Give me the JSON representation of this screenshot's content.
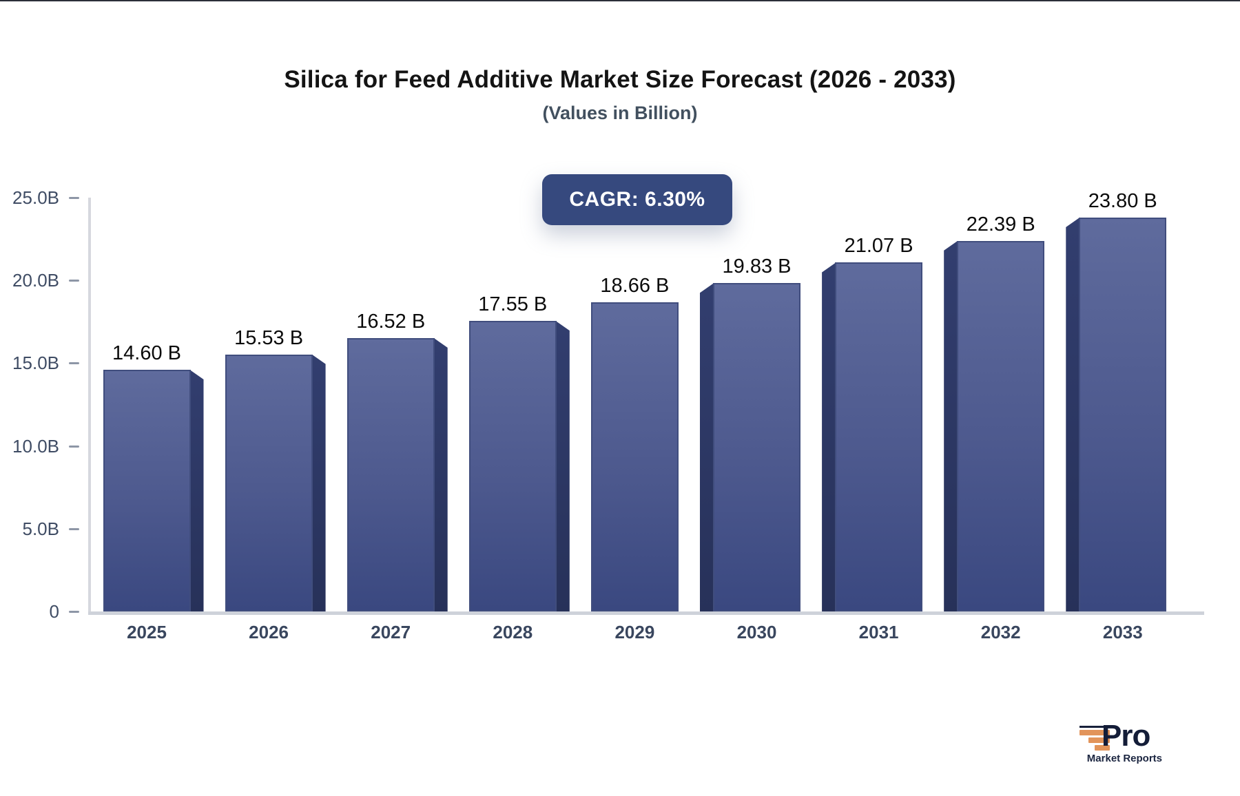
{
  "header": {
    "title": "Silica for Feed Additive Market Size Forecast (2026 - 2033)",
    "subtitle": "(Values in Billion)",
    "cagr_label": "CAGR: 6.30%"
  },
  "colors": {
    "badge_bg": "#36497e",
    "bar_face_top": "#5f6b9d",
    "bar_face_bottom": "#3a4880",
    "bar_side": "#2b3665",
    "logo_accent": "#e2945a"
  },
  "chart_data": {
    "type": "bar",
    "title": "Silica for Feed Additive Market Size Forecast (2026 - 2033)",
    "subtitle": "(Values in Billion)",
    "annotation": "CAGR: 6.30%",
    "categories": [
      "2025",
      "2026",
      "2027",
      "2028",
      "2029",
      "2030",
      "2031",
      "2032",
      "2033"
    ],
    "values": [
      14.6,
      15.53,
      16.52,
      17.55,
      18.66,
      19.83,
      21.07,
      22.39,
      23.8
    ],
    "value_labels": [
      "14.60 B",
      "15.53 B",
      "16.52 B",
      "17.55 B",
      "18.66 B",
      "19.83 B",
      "21.07 B",
      "22.39 B",
      "23.80 B"
    ],
    "unit": "Billion",
    "xlabel": "",
    "ylabel": "",
    "ylim": [
      0,
      25
    ],
    "yticks": {
      "values": [
        0,
        5,
        10,
        15,
        20,
        25
      ],
      "labels": [
        "0",
        "5.0B",
        "10.0B",
        "15.0B",
        "20.0B",
        "25.0B"
      ]
    },
    "grid": false,
    "legend": "none",
    "style": "3d-perspective-bars"
  },
  "logo": {
    "name": "Pro",
    "tagline": "Market Reports"
  }
}
